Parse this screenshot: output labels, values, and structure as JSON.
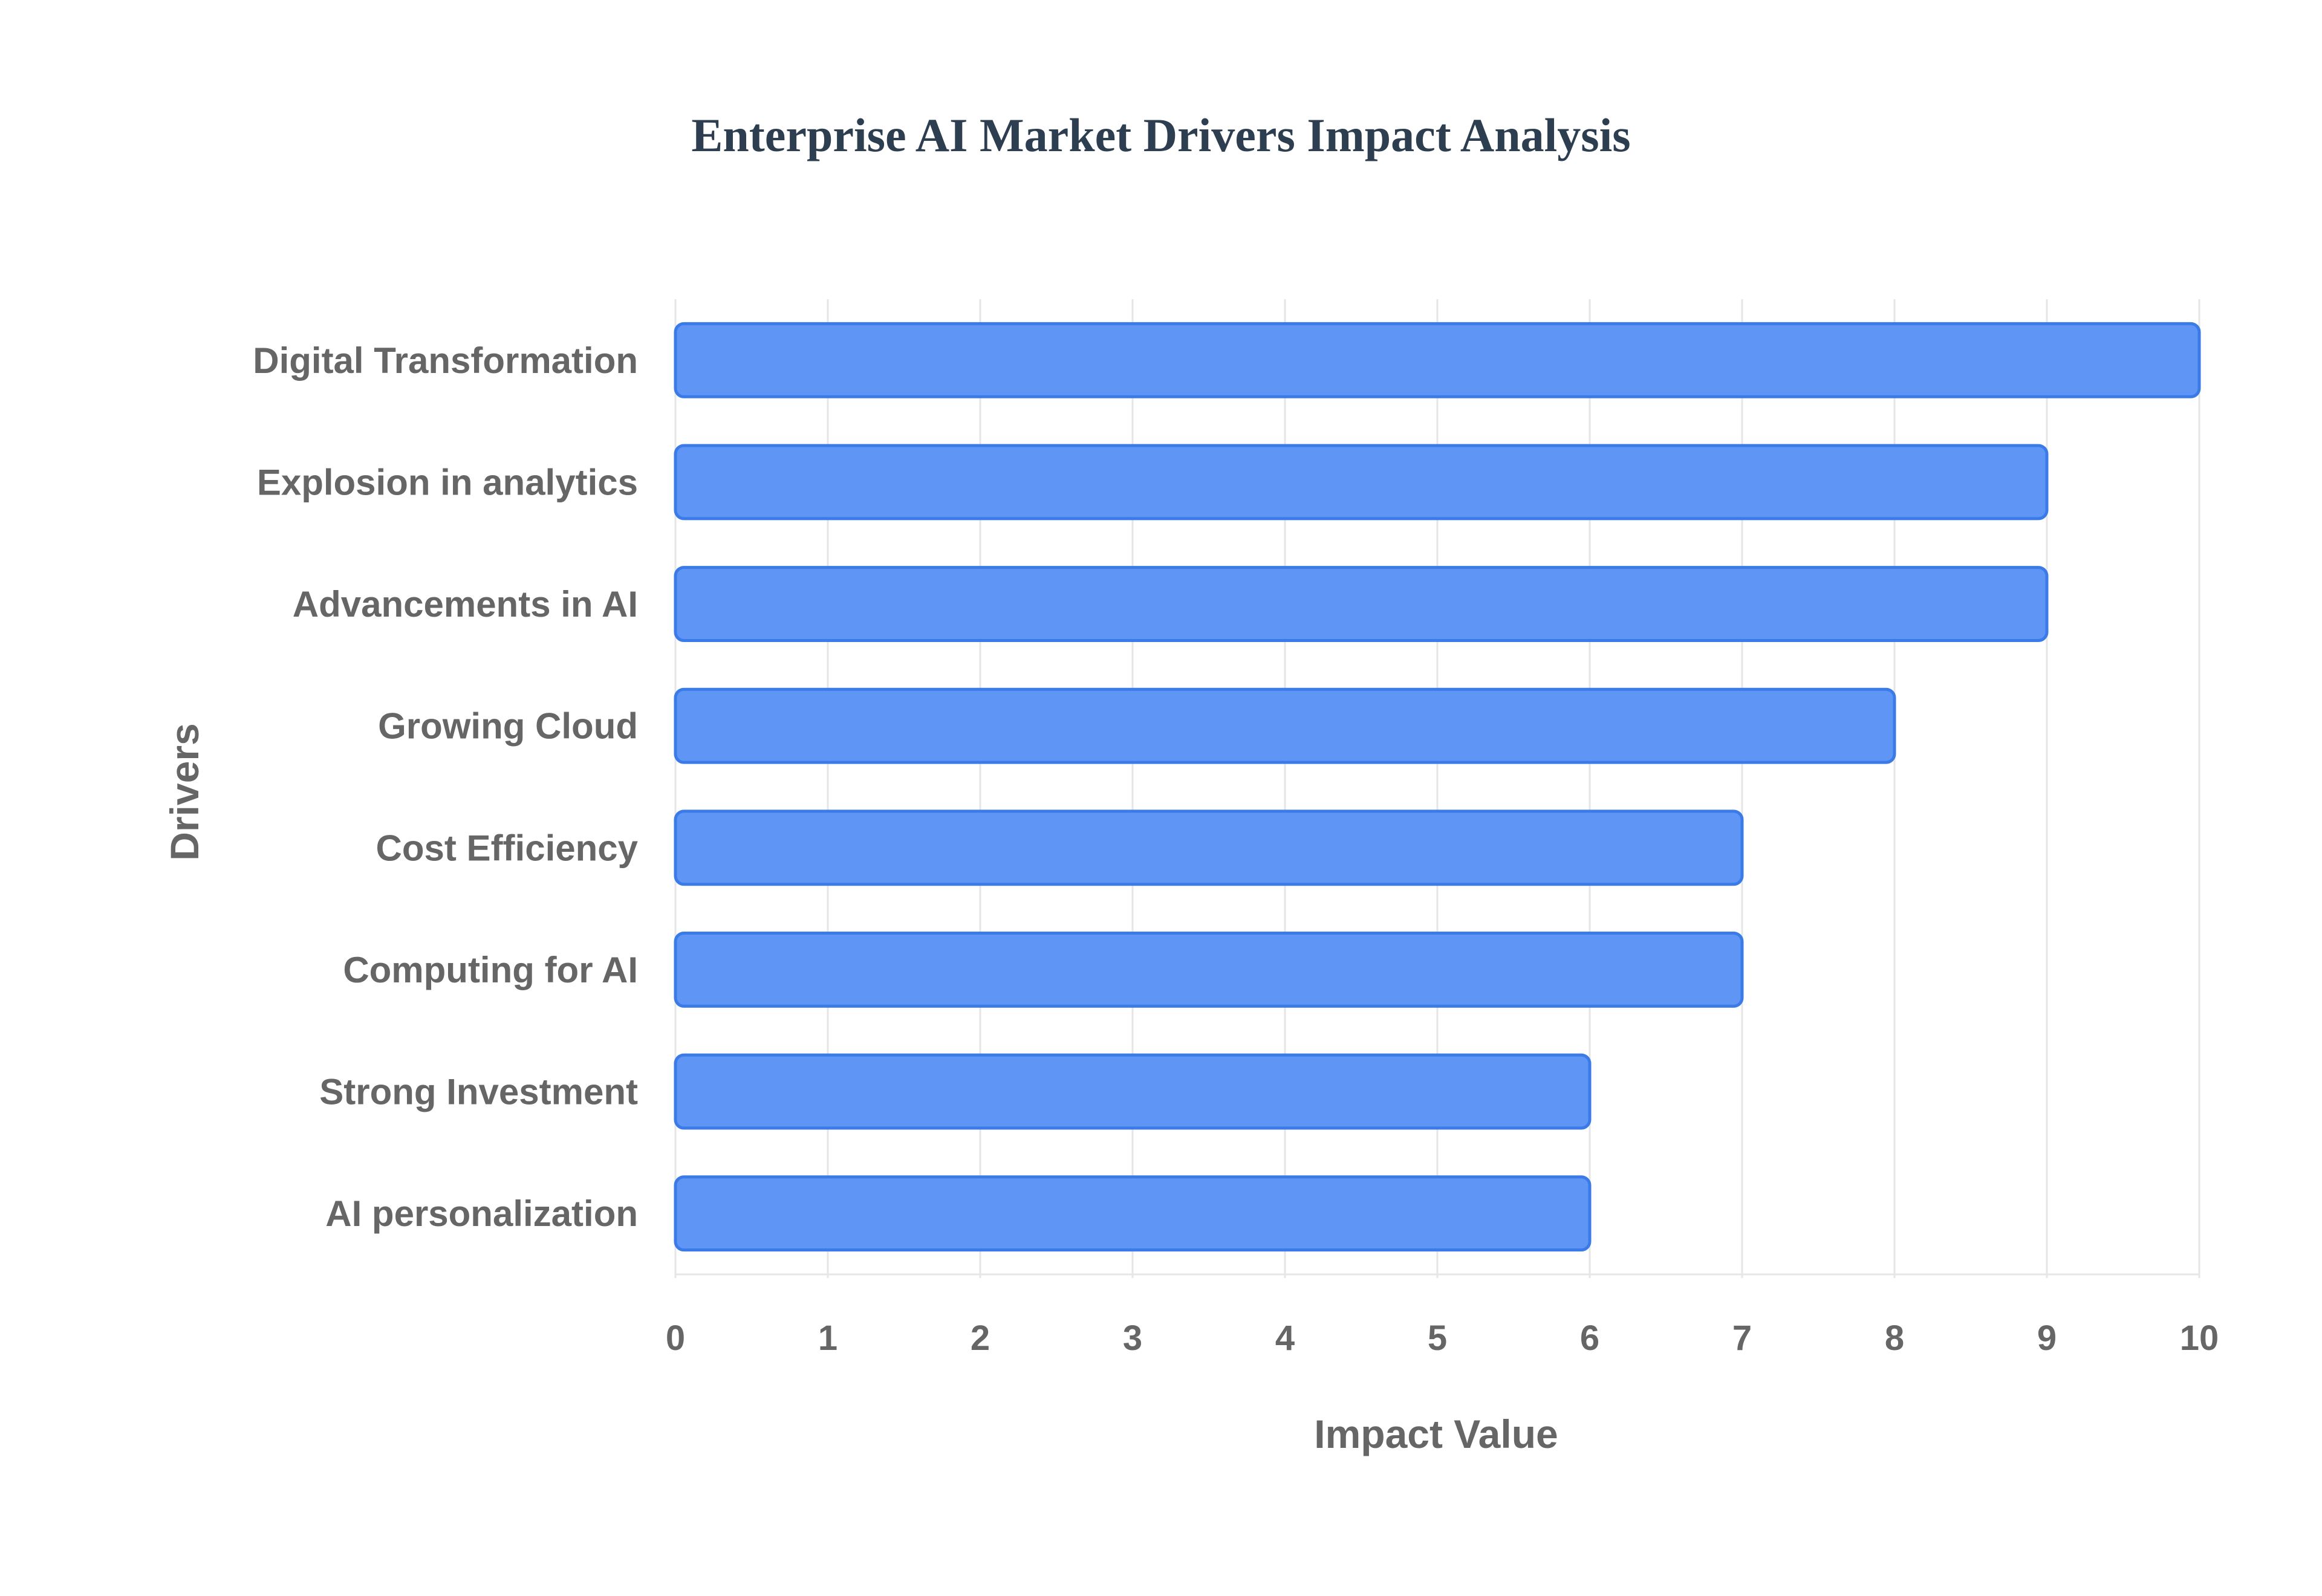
{
  "chart_data": {
    "type": "bar",
    "orientation": "horizontal",
    "title": "Enterprise AI Market Drivers Impact Analysis",
    "xlabel": "Impact Value",
    "ylabel": "Drivers",
    "categories": [
      "Digital Transformation",
      "Explosion in analytics",
      "Advancements in AI",
      "Growing Cloud",
      "Cost Efficiency",
      "Computing for AI",
      "Strong Investment",
      "AI personalization"
    ],
    "values": [
      10,
      9,
      9,
      8,
      7,
      7,
      6,
      6
    ],
    "xlim": [
      0,
      10
    ],
    "xticks": [
      "0",
      "1",
      "2",
      "3",
      "4",
      "5",
      "6",
      "7",
      "8",
      "9",
      "10"
    ],
    "grid": true,
    "legend": false,
    "colors": {
      "bar_fill": "#5f96f5",
      "bar_stroke": "#3b7be8",
      "title": "#2c3e50",
      "text": "#666666"
    }
  }
}
